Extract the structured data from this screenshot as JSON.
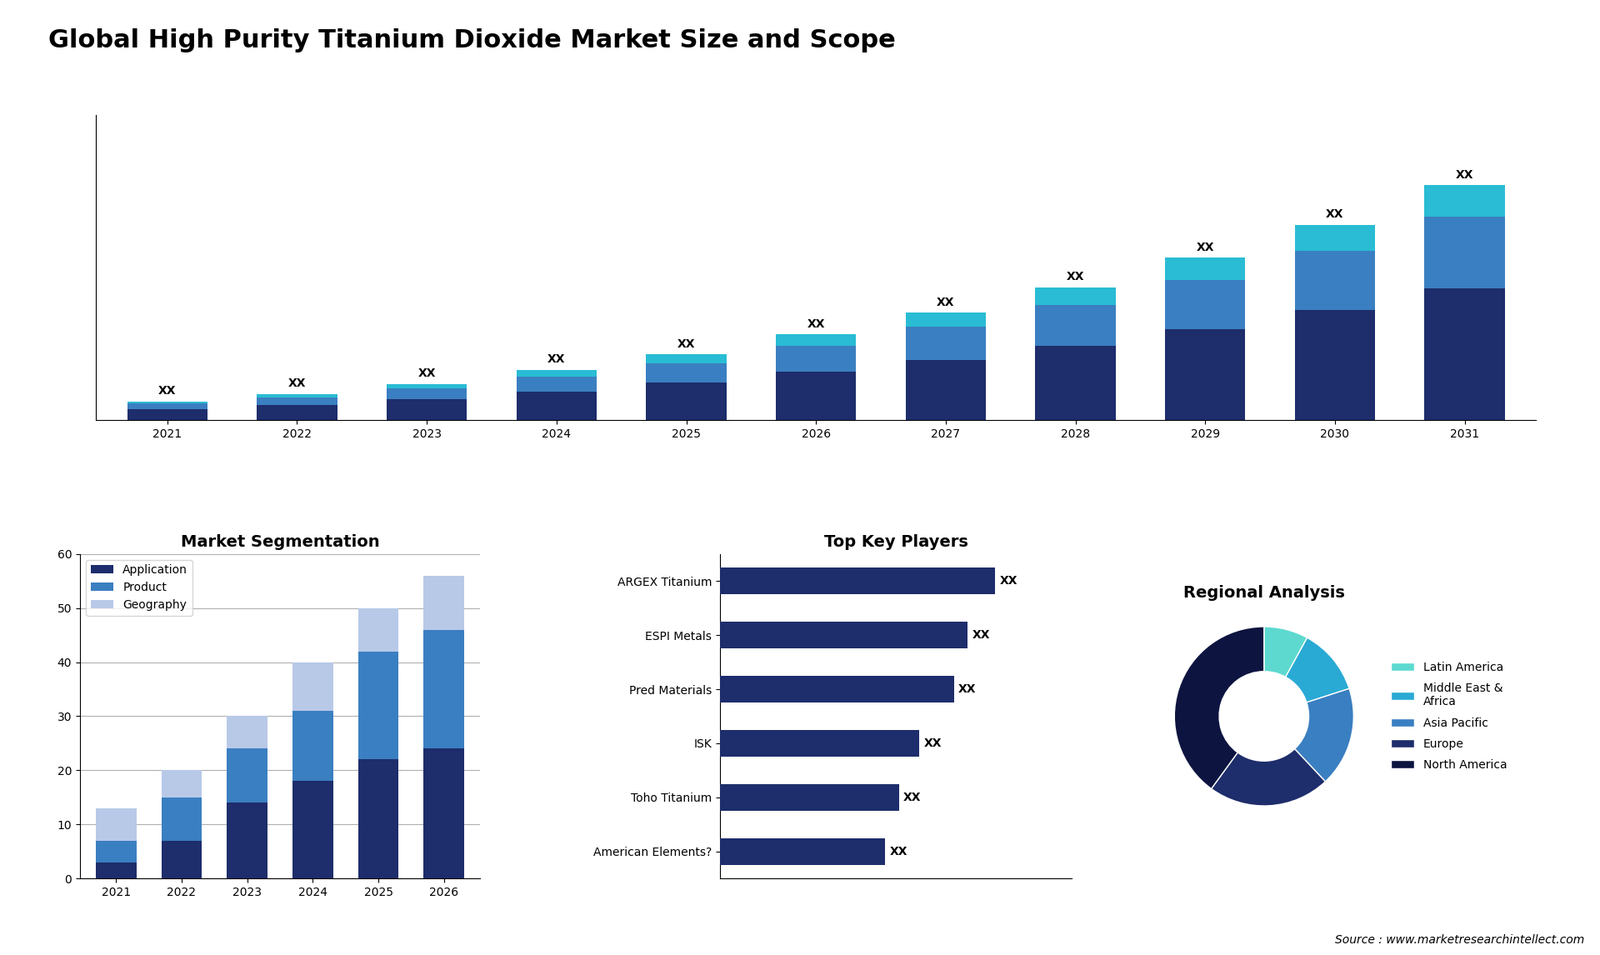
{
  "title": "Global High Purity Titanium Dioxide Market Size and Scope",
  "annotations": [
    "Source : www.marketresearchintellect.com"
  ],
  "chart_data": [
    {
      "type": "bar",
      "stacked": true,
      "categories": [
        "2021",
        "2022",
        "2023",
        "2024",
        "2025",
        "2026",
        "2027",
        "2028",
        "2029",
        "2030",
        "2031"
      ],
      "series": [
        {
          "color": "#1e2d6b",
          "values": [
            1.0,
            1.4,
            1.9,
            2.6,
            3.4,
            4.4,
            5.5,
            6.8,
            8.3,
            10.0,
            12.0
          ]
        },
        {
          "color": "#3a7fc1",
          "values": [
            0.5,
            0.7,
            1.0,
            1.4,
            1.8,
            2.4,
            3.0,
            3.7,
            4.5,
            5.4,
            6.5
          ]
        },
        {
          "color": "#29bcd4",
          "values": [
            0.2,
            0.3,
            0.4,
            0.6,
            0.8,
            1.0,
            1.3,
            1.6,
            2.0,
            2.4,
            2.9
          ]
        }
      ],
      "ylim": [
        0,
        27.82
      ],
      "tick_labels": "x",
      "value_labels": [
        "XX",
        "XX",
        "XX",
        "XX",
        "XX",
        "XX",
        "XX",
        "XX",
        "XX",
        "XX",
        "XX"
      ]
    },
    {
      "type": "bar",
      "stacked": true,
      "title": "Market Segmentation",
      "categories": [
        "2021",
        "2022",
        "2023",
        "2024",
        "2025",
        "2026"
      ],
      "series": [
        {
          "name": "Application",
          "color": "#1e2d6b",
          "values": [
            3,
            7,
            14,
            18,
            22,
            24
          ]
        },
        {
          "name": "Product",
          "color": "#3a7fc1",
          "values": [
            4,
            8,
            10,
            13,
            20,
            22
          ]
        },
        {
          "name": "Geography",
          "color": "#b8c9e8",
          "values": [
            6,
            5,
            6,
            9,
            8,
            10
          ]
        }
      ],
      "ylim": [
        0,
        60
      ],
      "yticks": [
        0,
        10,
        20,
        30,
        40,
        50,
        60
      ],
      "grid": true,
      "legend": "upper left"
    },
    {
      "type": "bar",
      "orientation": "horizontal",
      "title": "Top Key Players",
      "categories": [
        "ARGEX Titanium",
        "ESPI Metals",
        "Pred Materials",
        "ISK",
        "Toho Titanium",
        "American Elements?"
      ],
      "values": [
        80,
        72,
        68,
        58,
        52,
        48
      ],
      "color": "#1e2d6b",
      "xlim": [
        0,
        102.4
      ],
      "tick_labels": "y",
      "value_labels": [
        "XX",
        "XX",
        "XX",
        "XX",
        "XX",
        "XX"
      ]
    },
    {
      "type": "pie",
      "title": "Regional Analysis",
      "categories": [
        "Latin America",
        "Middle East &\nAfrica",
        "Asia Pacific",
        "Europe",
        "North America"
      ],
      "values": [
        8,
        12,
        18,
        22,
        40
      ],
      "colors": [
        "#5dd9d0",
        "#29aad4",
        "#3a7fc1",
        "#1e2d6b",
        "#0d1440"
      ],
      "legend": "center left"
    }
  ]
}
